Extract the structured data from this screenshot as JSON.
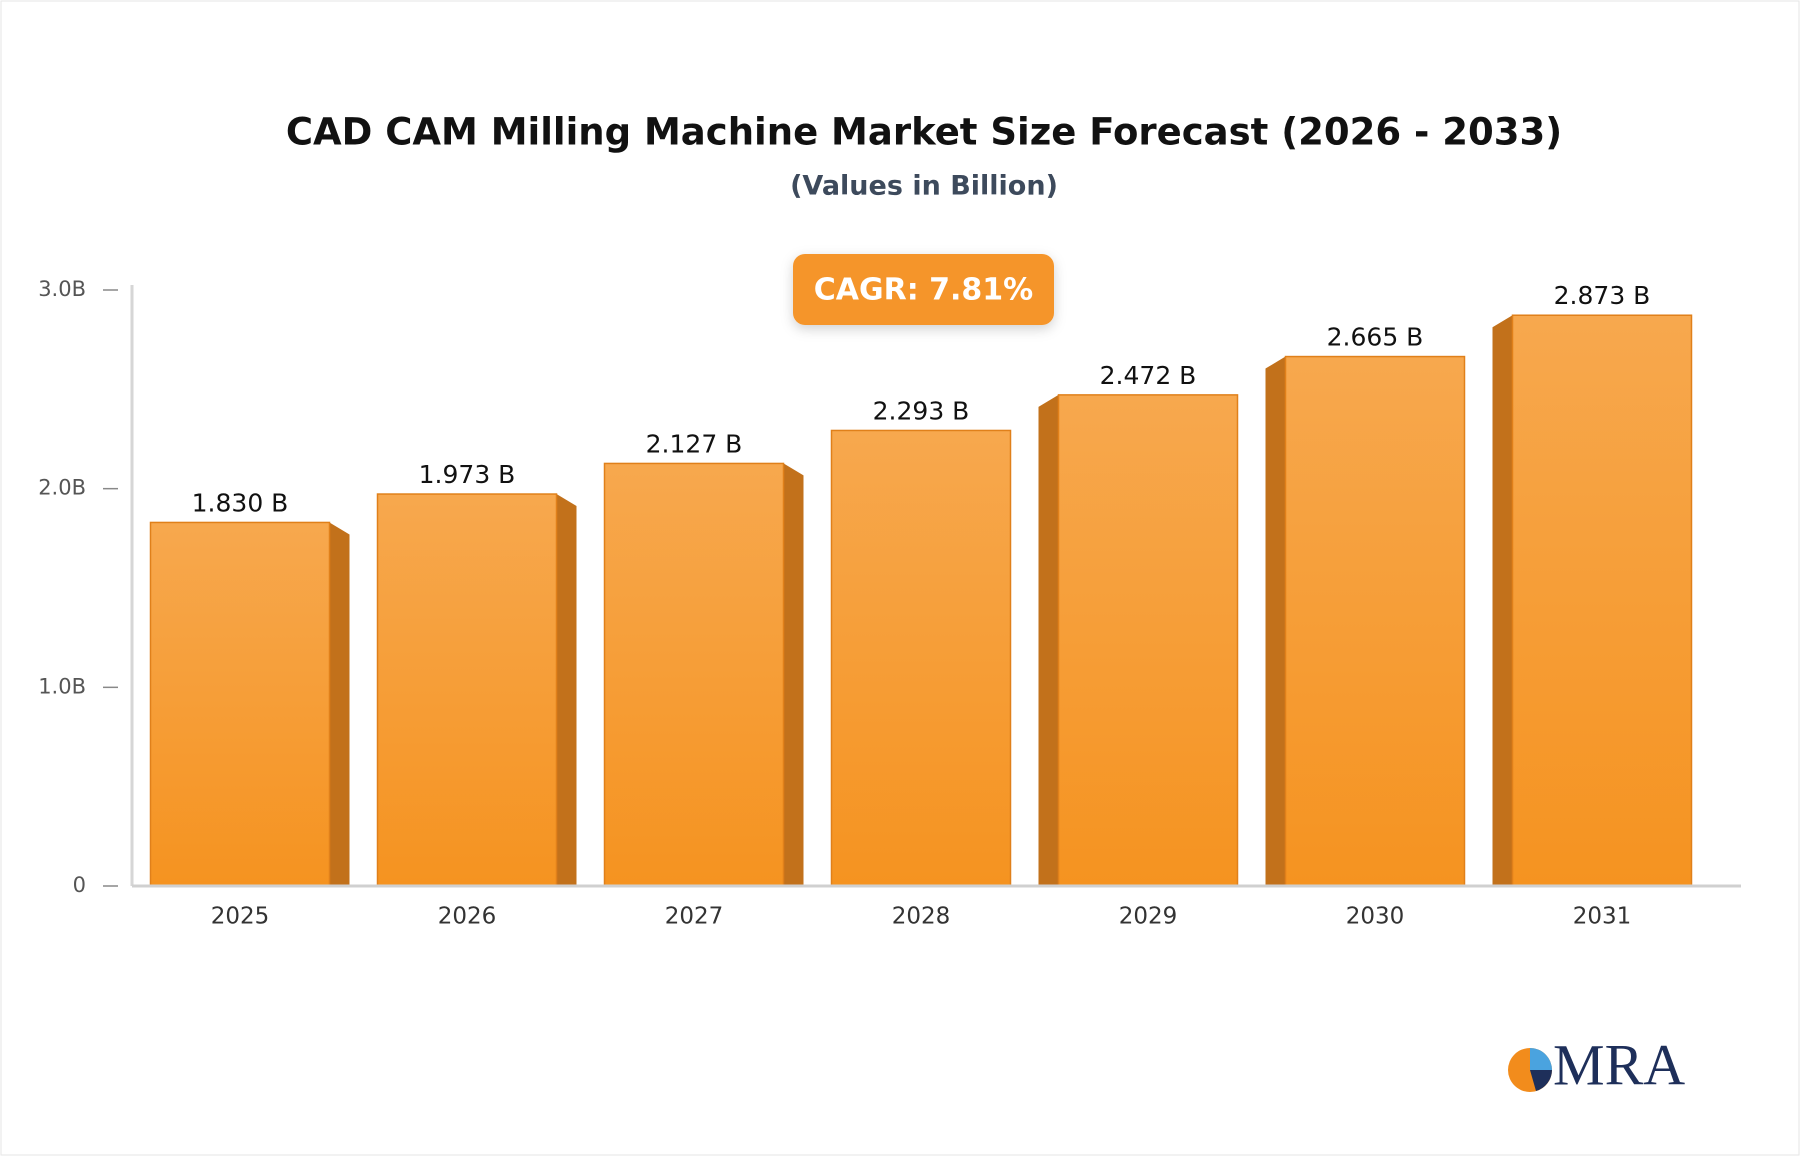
{
  "chart_data": {
    "type": "bar",
    "title": "CAD CAM Milling Machine Market Size Forecast (2026 - 2033)",
    "subtitle": "(Values in Billion)",
    "annotation": "CAGR: 7.81%",
    "categories": [
      "2025",
      "2026",
      "2027",
      "2028",
      "2029",
      "2030",
      "2031"
    ],
    "values": [
      1.83,
      1.973,
      2.127,
      2.293,
      2.472,
      2.665,
      2.873
    ],
    "value_labels": [
      "1.830 B",
      "1.973 B",
      "2.127 B",
      "2.293 B",
      "2.472 B",
      "2.665 B",
      "2.873 B"
    ],
    "color": "#f59a2e",
    "ylim": [
      0,
      3
    ],
    "yticks": [
      0,
      {
        "value": 1,
        "label": "1.0B"
      },
      {
        "value": 2,
        "label": "2.0B"
      },
      {
        "value": 3,
        "label": "3.0B"
      }
    ],
    "grid": false
  },
  "logo": "MRA"
}
